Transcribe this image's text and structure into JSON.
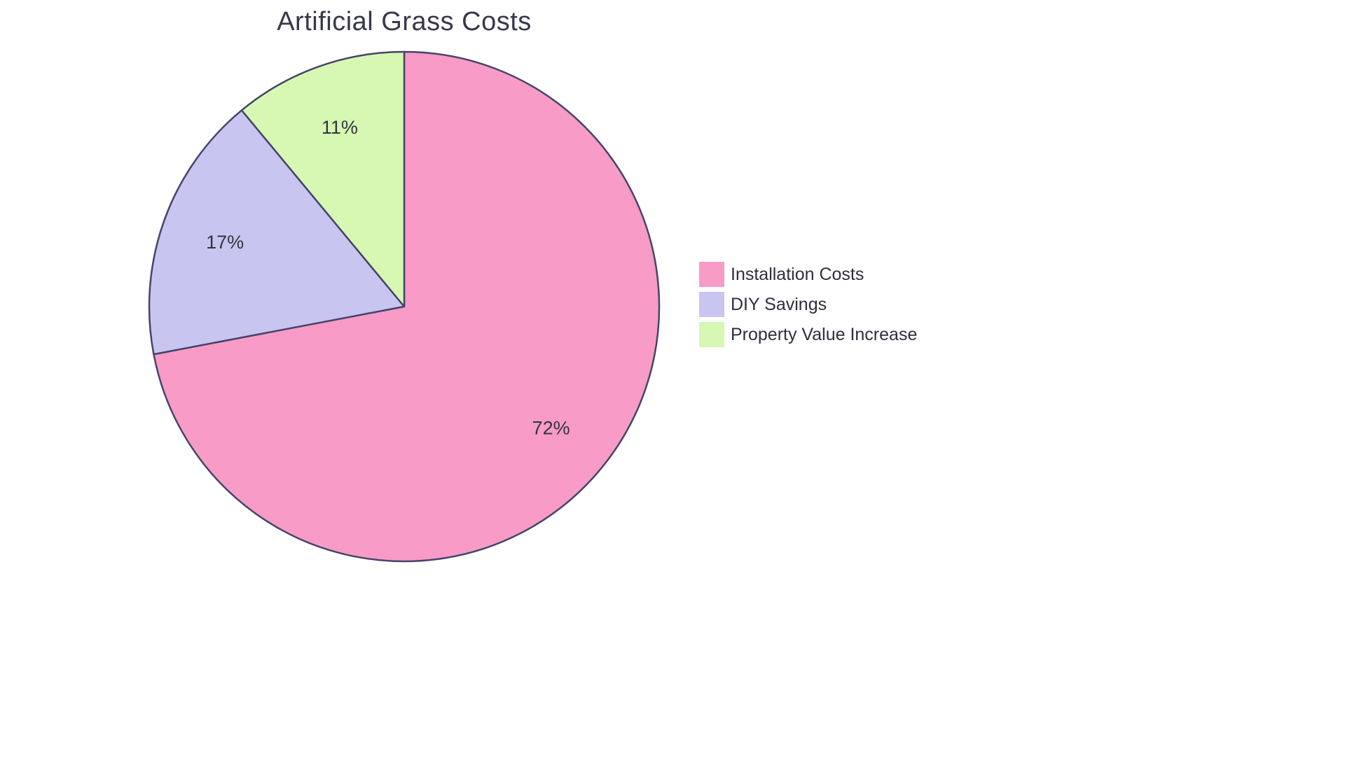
{
  "chart_data": {
    "type": "pie",
    "title": "Artificial Grass Costs",
    "categories": [
      "Installation Costs",
      "DIY Savings",
      "Property Value Increase"
    ],
    "values": [
      72,
      17,
      11
    ],
    "labels": [
      "72%",
      "17%",
      "11%"
    ],
    "colors": [
      "#F99BC7",
      "#C9C5F1",
      "#D6F8B2"
    ],
    "stroke_color": "#45456A",
    "legend_position": "right",
    "start_angle_deg": 0,
    "direction": "clockwise",
    "grid": false
  }
}
